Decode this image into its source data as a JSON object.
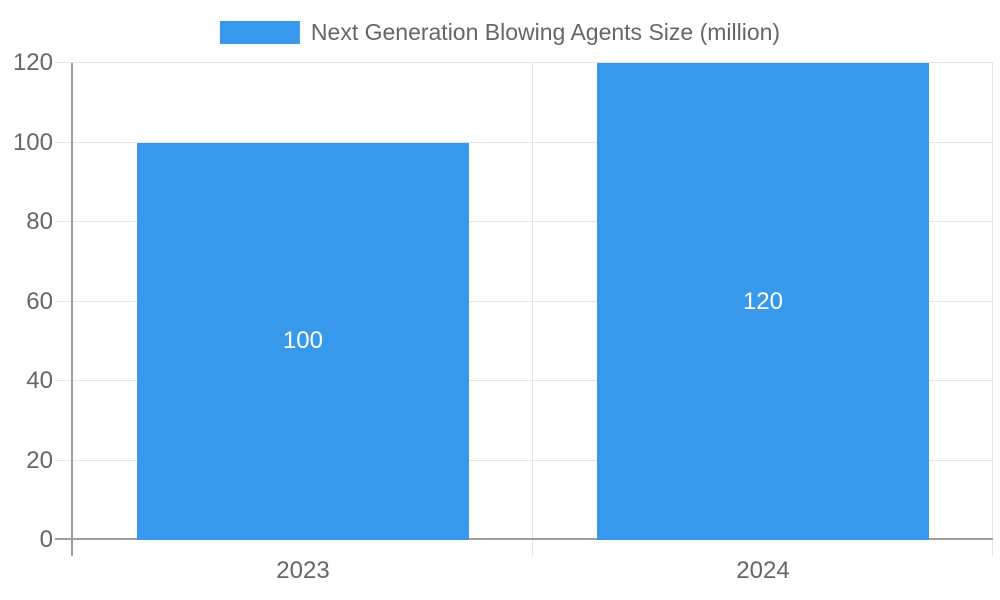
{
  "chart_data": {
    "type": "bar",
    "title": "",
    "legend": {
      "position": "top",
      "entries": [
        {
          "label": "Next Generation Blowing Agents Size (million)",
          "color": "#3899ec"
        }
      ]
    },
    "categories": [
      "2023",
      "2024"
    ],
    "series": [
      {
        "name": "Next Generation Blowing Agents Size (million)",
        "values": [
          100,
          120
        ]
      }
    ],
    "value_labels": [
      "100",
      "120"
    ],
    "xlabel": "",
    "ylabel": "",
    "ylim": [
      0,
      120
    ],
    "yticks": [
      0,
      20,
      40,
      60,
      80,
      100,
      120
    ],
    "grid": true,
    "colors": {
      "bar": "#3899ec",
      "value_label_text": "#ffffff",
      "axis_label_text": "#666666",
      "legend_text": "#666666",
      "gridline": "#e6e6e6",
      "axis_line": "#9e9e9e"
    }
  }
}
